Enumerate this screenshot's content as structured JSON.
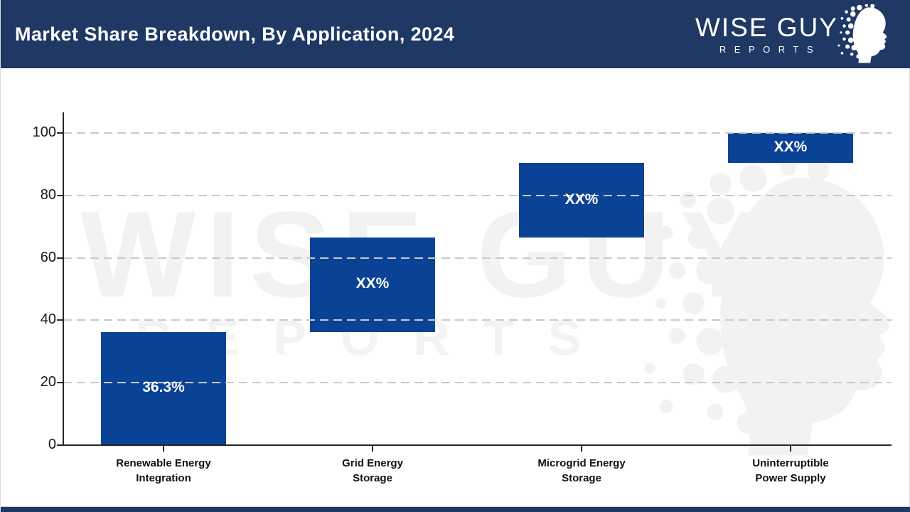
{
  "header": {
    "title": "Market Share Breakdown, By Application, 2024"
  },
  "logo": {
    "name_top": "WISE GUY",
    "name_bottom": "REPORTS",
    "face_icon": "dotted-head-profile"
  },
  "watermark": {
    "line1": "WISE GUY",
    "line2": "REPORTS"
  },
  "chart_data": {
    "type": "bar",
    "subtype": "waterfall",
    "title": "Market Share Breakdown, By Application, 2024",
    "unit": "%",
    "categories": [
      [
        "Renewable Energy",
        "Integration"
      ],
      [
        "Grid Energy",
        "Storage"
      ],
      [
        "Microgrid Energy",
        "Storage"
      ],
      [
        "Uninterruptible",
        "Power Supply"
      ]
    ],
    "segments": [
      {
        "label": "36.3%",
        "start": 0,
        "end": 36.3,
        "value": 36.3,
        "masked": false
      },
      {
        "label": "XX%",
        "start": 36.3,
        "end": 66.5,
        "value": 30.2,
        "masked": true
      },
      {
        "label": "XX%",
        "start": 66.5,
        "end": 90.4,
        "value": 23.9,
        "masked": true
      },
      {
        "label": "XX%",
        "start": 90.4,
        "end": 100,
        "value": 9.6,
        "masked": true
      }
    ],
    "yticks": [
      0,
      20,
      40,
      60,
      80,
      100
    ],
    "ylim": [
      0,
      105
    ],
    "xlabel": "",
    "ylabel": "",
    "grid": "horizontal-dashed",
    "legend": "none",
    "bar_color": "#0a4296"
  },
  "colors": {
    "header_bg": "#1f3864",
    "footer_bg": "#1f3864",
    "bar": "#0a4296",
    "axis": "#262626",
    "gridline": "#c9c9c9",
    "value_label": "#ffffff",
    "watermark": "#f2f2f2"
  }
}
